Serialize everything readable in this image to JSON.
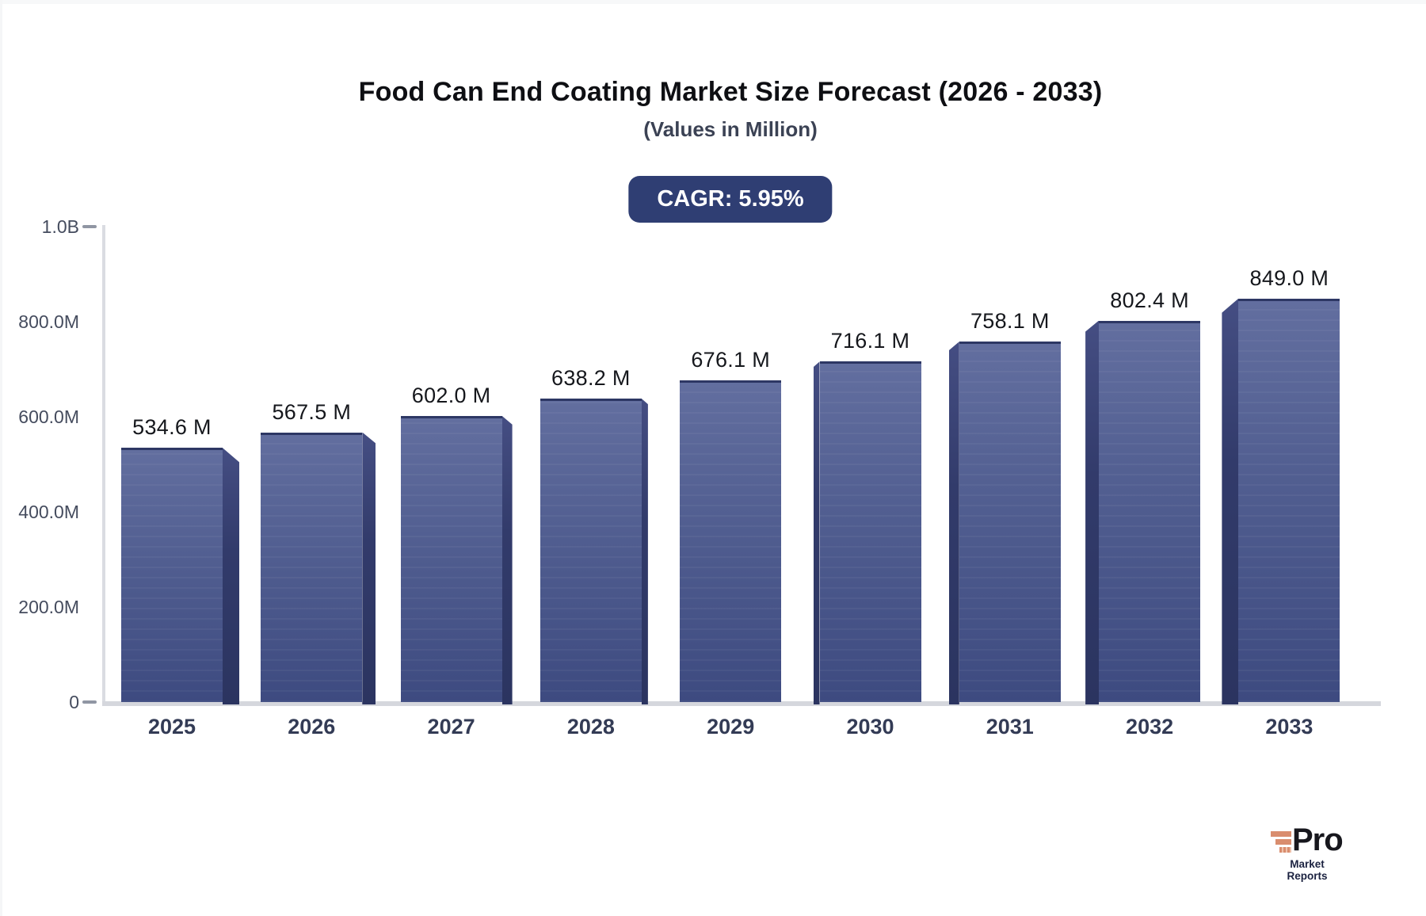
{
  "header": {
    "title": "Food Can End Coating Market Size Forecast (2026 - 2033)",
    "subtitle": "(Values in Million)",
    "cagr_badge": "CAGR: 5.95%"
  },
  "chart_data": {
    "type": "bar",
    "title": "Food Can End Coating Market Size Forecast (2026 - 2033)",
    "subtitle": "(Values in Million)",
    "annotation": "CAGR: 5.95%",
    "categories": [
      "2025",
      "2026",
      "2027",
      "2028",
      "2029",
      "2030",
      "2031",
      "2032",
      "2033"
    ],
    "values": [
      534.6,
      567.5,
      602.0,
      638.2,
      676.1,
      716.1,
      758.1,
      802.4,
      849.0
    ],
    "value_labels": [
      "534.6 M",
      "567.5 M",
      "602.0 M",
      "638.2 M",
      "676.1 M",
      "716.1 M",
      "758.1 M",
      "802.4 M",
      "849.0 M"
    ],
    "xlabel": "",
    "ylabel": "",
    "ylim": [
      0,
      1000
    ],
    "yticks": [
      {
        "label": "1.0B",
        "value": 1000,
        "dash": true
      },
      {
        "label": "800.0M",
        "value": 800,
        "dash": false
      },
      {
        "label": "600.0M",
        "value": 600,
        "dash": false
      },
      {
        "label": "400.0M",
        "value": 400,
        "dash": false
      },
      {
        "label": "200.0M",
        "value": 200,
        "dash": false
      },
      {
        "label": "0",
        "value": 0,
        "dash": true
      }
    ],
    "grid": false,
    "legend": "none",
    "bar_style": "3d-extruded, perspective toward center"
  },
  "colors": {
    "bar_face_top": "#626e9f",
    "bar_face_bottom": "#3d4a80",
    "bar_side": "#2c355f",
    "bar_top_border": "#2d3764",
    "badge_bg": "#2f3e73",
    "badge_text": "#ffffff",
    "axis_line": "#d9dbe1",
    "ytick_text": "#454c5e",
    "xtick_text": "#333b55",
    "value_text": "#15171c",
    "logo_accent": "#d98d6e"
  },
  "logo": {
    "brand": "Pro",
    "tagline": "Market Reports"
  }
}
